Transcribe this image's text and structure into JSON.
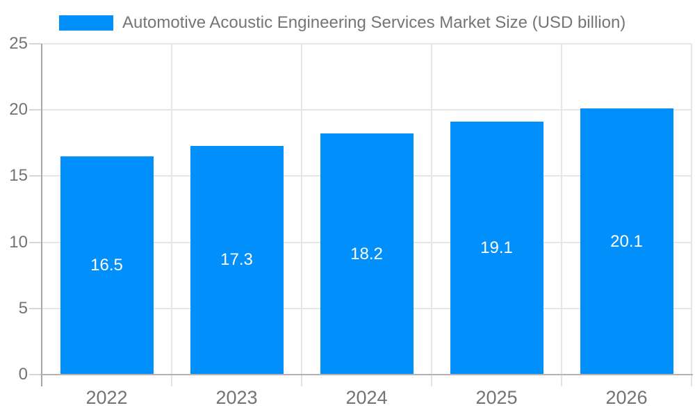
{
  "legend": {
    "label": "Automotive Acoustic Engineering Services Market Size (USD billion)",
    "swatch_color": "#008ffb"
  },
  "chart_data": {
    "type": "bar",
    "title": "Automotive Acoustic Engineering Services Market Size (USD billion)",
    "categories": [
      "2022",
      "2023",
      "2024",
      "2025",
      "2026"
    ],
    "values": [
      16.5,
      17.3,
      18.2,
      19.1,
      20.1
    ],
    "bar_labels": [
      "16.5",
      "17.3",
      "18.2",
      "19.1",
      "20.1"
    ],
    "xlabel": "",
    "ylabel": "",
    "ylim": [
      0,
      25
    ],
    "yticks": [
      0,
      5,
      10,
      15,
      20,
      25
    ],
    "grid": true,
    "legend_position": "top-left",
    "colors": {
      "bar": "#008ffb",
      "bar_label_text": "#ffffff",
      "grid_line": "#e6e6e6",
      "axis_line": "#b3b3b3",
      "tick_line": "#d6d6d6",
      "label_text": "#737373",
      "background": "#ffffff"
    }
  }
}
